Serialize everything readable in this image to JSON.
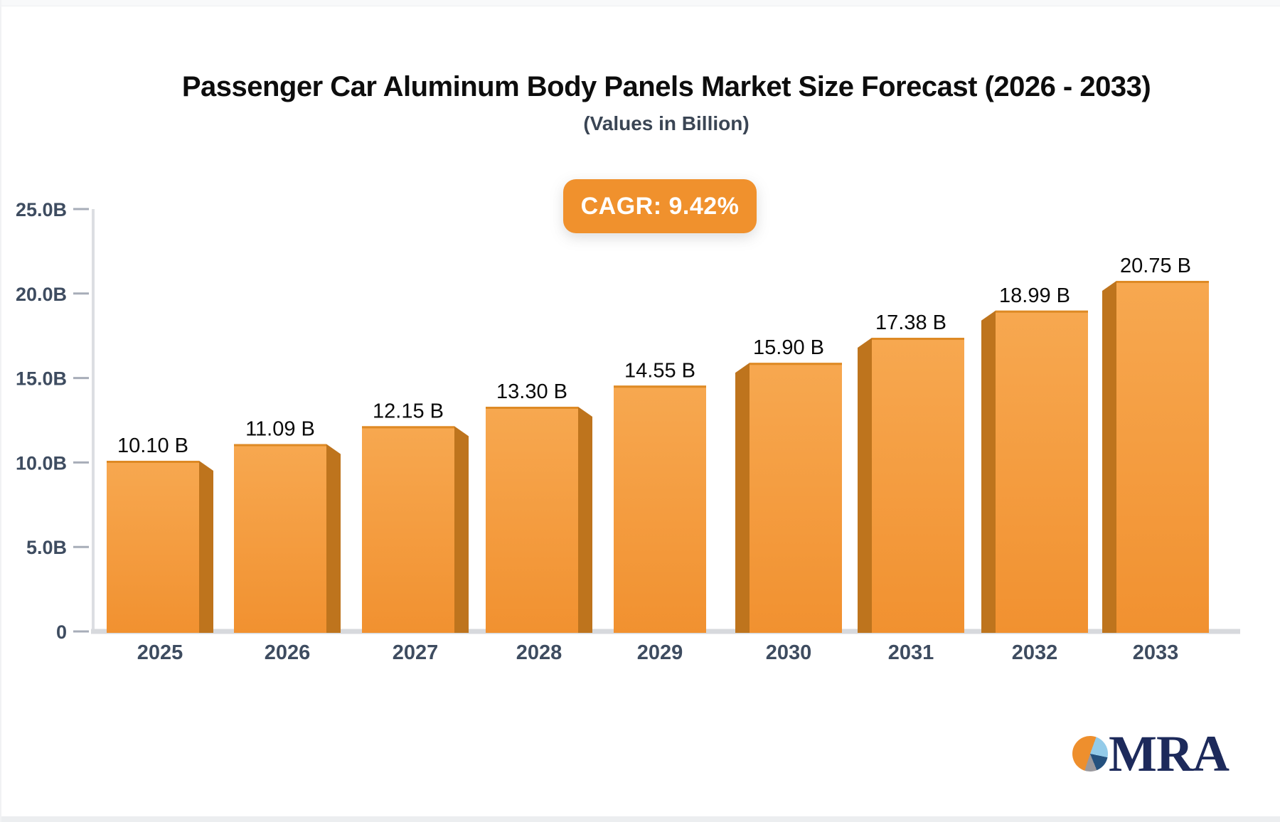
{
  "header": {
    "title": "Passenger Car Aluminum Body Panels Market Size Forecast (2026 - 2033)",
    "subtitle": "(Values in Billion)",
    "cagr_label": "CAGR: 9.42%"
  },
  "footer": {
    "logo_text": "MRA"
  },
  "colors": {
    "accent_orange": "#f0912d",
    "bar_gradient_top": "#f7a850",
    "bar_gradient_bottom": "#f19130",
    "bar_side": "#be741d",
    "bar_top_edge": "#de8a25",
    "axis_line": "#d7d9dd",
    "tick_dash": "#a7adb8",
    "axis_label": "#3e4c60",
    "value_label": "#0a0a0a",
    "logo_navy": "#1d2a5b"
  },
  "chart_data": {
    "type": "bar",
    "title": "Passenger Car Aluminum Body Panels Market Size Forecast (2026 - 2033)",
    "subtitle": "(Values in Billion)",
    "cagr": "9.42%",
    "categories": [
      "2025",
      "2026",
      "2027",
      "2028",
      "2029",
      "2030",
      "2031",
      "2032",
      "2033"
    ],
    "values": [
      10.1,
      11.09,
      12.15,
      13.3,
      14.55,
      15.9,
      17.38,
      18.99,
      20.75
    ],
    "value_labels": [
      "10.10 B",
      "11.09 B",
      "12.15 B",
      "13.30 B",
      "14.55 B",
      "15.90 B",
      "17.38 B",
      "18.99 B",
      "20.75 B"
    ],
    "value_suffix": " B",
    "xlabel": "",
    "ylabel": "",
    "ylim": [
      0,
      25
    ],
    "grid": false,
    "legend": false,
    "y_ticks": [
      {
        "label": "25.0B",
        "value": 25
      },
      {
        "label": "20.0B",
        "value": 20
      },
      {
        "label": "15.0B",
        "value": 15
      },
      {
        "label": "10.0B",
        "value": 10
      },
      {
        "label": "5.0B",
        "value": 5
      },
      {
        "label": "0",
        "value": 0
      }
    ]
  }
}
